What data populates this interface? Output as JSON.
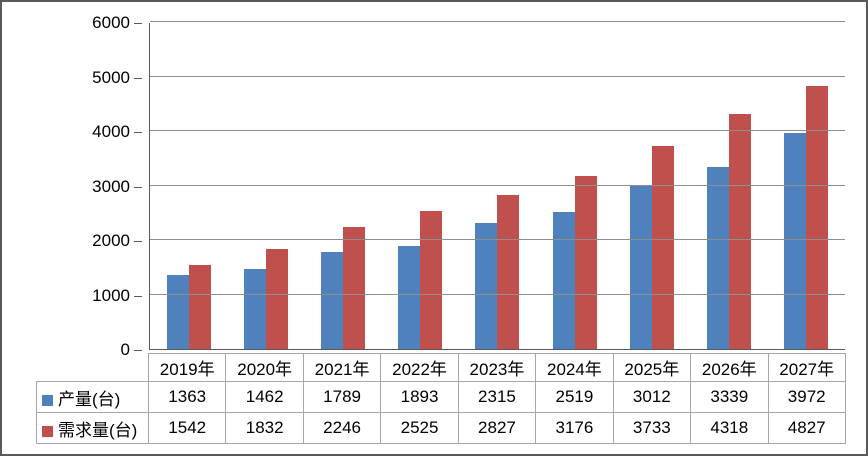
{
  "chart_data": {
    "type": "bar",
    "title": "",
    "xlabel": "",
    "ylabel": "",
    "categories": [
      "2019年",
      "2020年",
      "2021年",
      "2022年",
      "2023年",
      "2024年",
      "2025年",
      "2026年",
      "2027年"
    ],
    "series": [
      {
        "name": "产量(台)",
        "color": "#4F81BD",
        "values": [
          1363,
          1462,
          1789,
          1893,
          2315,
          2519,
          3012,
          3339,
          3972
        ]
      },
      {
        "name": "需求量(台)",
        "color": "#C0504D",
        "values": [
          1542,
          1832,
          2246,
          2525,
          2827,
          3176,
          3733,
          4318,
          4827
        ]
      }
    ],
    "ylim": [
      0,
      6000
    ],
    "ytick_step": 1000,
    "ytick_labels": [
      "0",
      "1000",
      "2000",
      "3000",
      "4000",
      "5000",
      "6000"
    ],
    "grid": true,
    "legend_position": "data-table-left-column",
    "data_table_shown": true
  },
  "colors": {
    "series1": "#4F81BD",
    "series2": "#C0504D",
    "gridline": "#8E8E8E",
    "axis": "#595959",
    "table_border": "#A6A6A6",
    "outer_border": "#595959",
    "background": "#FFFFFF",
    "text": "#000000"
  }
}
